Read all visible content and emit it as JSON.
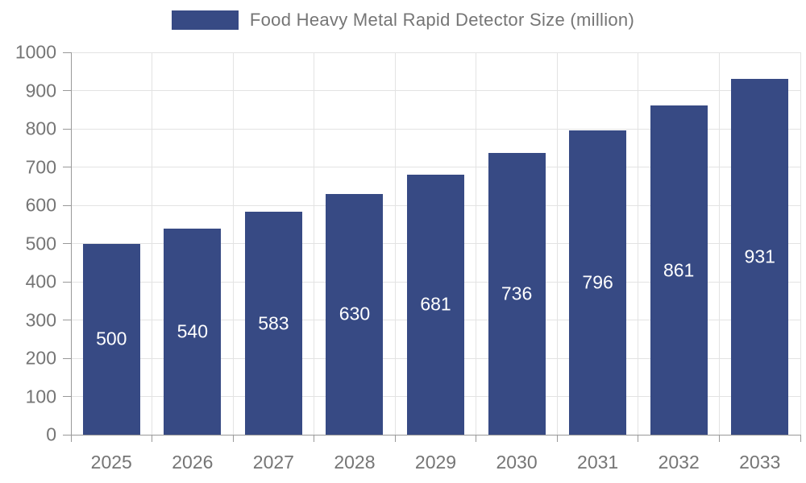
{
  "legend": {
    "label": "Food Heavy Metal Rapid Detector Size (million)"
  },
  "chart_data": {
    "type": "bar",
    "title": "Food Heavy Metal Rapid Detector Size (million)",
    "categories": [
      "2025",
      "2026",
      "2027",
      "2028",
      "2029",
      "2030",
      "2031",
      "2032",
      "2033"
    ],
    "values": [
      500,
      540,
      583,
      630,
      681,
      736,
      796,
      861,
      931
    ],
    "xlabel": "",
    "ylabel": "",
    "ylim": [
      0,
      1000
    ],
    "ytick_step": 100,
    "grid": "on",
    "legend_position": "top-center",
    "value_labels": "inside-center",
    "colors": {
      "bar": "#374A84",
      "bar_label_text": "#ffffff",
      "axis_text": "#757575",
      "grid_line": "#e3e3e3",
      "axis_line": "#999999",
      "background": "#ffffff"
    }
  }
}
